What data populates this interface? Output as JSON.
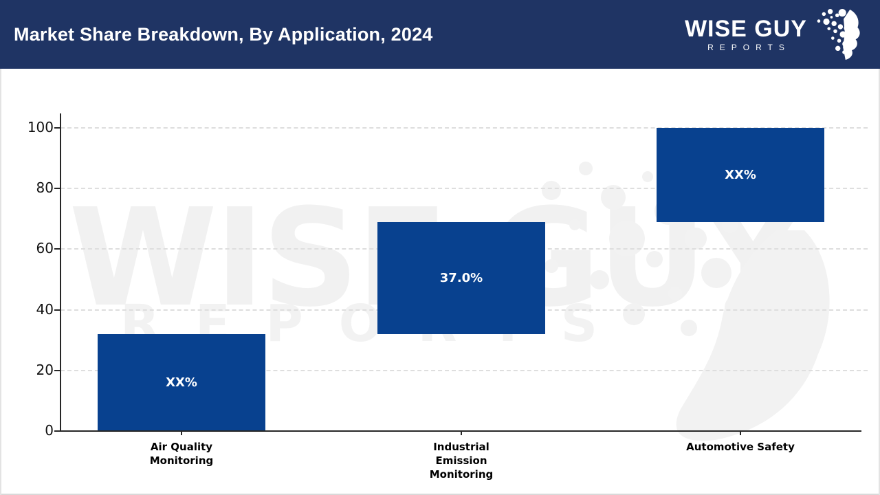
{
  "header": {
    "title": "Market Share Breakdown, By Application, 2024",
    "bg_color": "#1f3464",
    "logo": {
      "line1": "WISE GUY",
      "line2": "REPORTS"
    }
  },
  "watermark": {
    "line1": "WISE GUY",
    "line2": "REPORTS"
  },
  "chart_data": {
    "type": "bar",
    "variant": "floating-stacked-segments",
    "title": "Market Share Breakdown, By Application, 2024",
    "categories": [
      "Air Quality\nMonitoring",
      "Industrial\nEmission\nMonitoring",
      "Automotive Safety"
    ],
    "segments": [
      {
        "category": "Air Quality Monitoring",
        "start": 0,
        "end": 32,
        "label": "XX%"
      },
      {
        "category": "Industrial Emission Monitoring",
        "start": 32,
        "end": 69,
        "label": "37.0%"
      },
      {
        "category": "Automotive Safety",
        "start": 69,
        "end": 100,
        "label": "XX%"
      }
    ],
    "yticks": [
      0,
      20,
      40,
      60,
      80,
      100
    ],
    "ylim": [
      0,
      105
    ],
    "xlabel": "",
    "ylabel": "",
    "legend": "none",
    "grid": "horizontal-dashed",
    "bar_color": "#08418f",
    "bar_label_color": "#ffffff",
    "axis_color": "#262626"
  }
}
